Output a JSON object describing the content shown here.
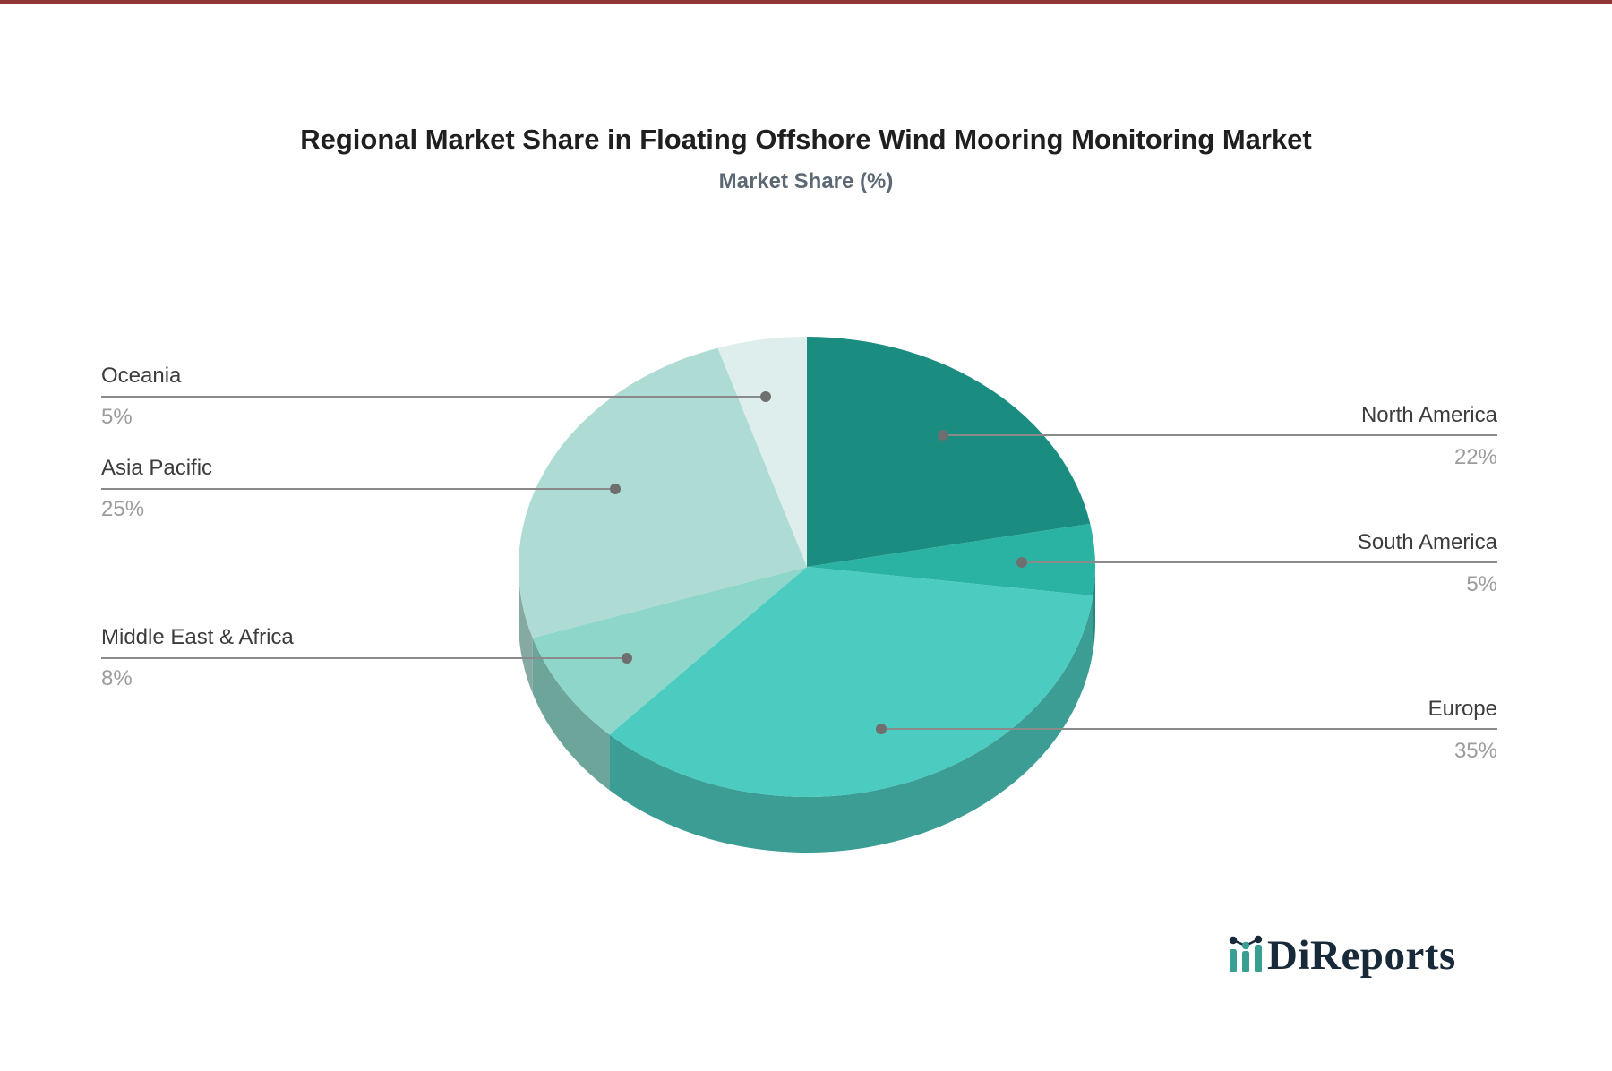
{
  "page": {
    "top_bar_color": "#8f3636",
    "background": "#ffffff"
  },
  "chart_data": {
    "type": "pie",
    "title": "Regional Market Share in Floating Offshore Wind Mooring Monitoring Market",
    "subtitle": "Market Share (%)",
    "effect": "3d",
    "legend_position": "none",
    "label_style": "leader-lines",
    "start_angle": "12-o-clock",
    "direction": "clockwise",
    "slices": [
      {
        "label": "North America",
        "value": 22,
        "pct": "22%",
        "color": "#1a8c80"
      },
      {
        "label": "South America",
        "value": 5,
        "pct": "5%",
        "color": "#2ab3a3"
      },
      {
        "label": "Europe",
        "value": 35,
        "pct": "35%",
        "color": "#4cccc0"
      },
      {
        "label": "Middle East & Africa",
        "value": 8,
        "pct": "8%",
        "color": "#8dd6c9"
      },
      {
        "label": "Asia Pacific",
        "value": 25,
        "pct": "25%",
        "color": "#aedcd5"
      },
      {
        "label": "Oceania",
        "value": 5,
        "pct": "5%",
        "color": "#ddeeec"
      }
    ]
  },
  "branding": {
    "logo_text": "DiReports",
    "logo_color": "#18293a",
    "logo_accent": "#3b9e93"
  }
}
